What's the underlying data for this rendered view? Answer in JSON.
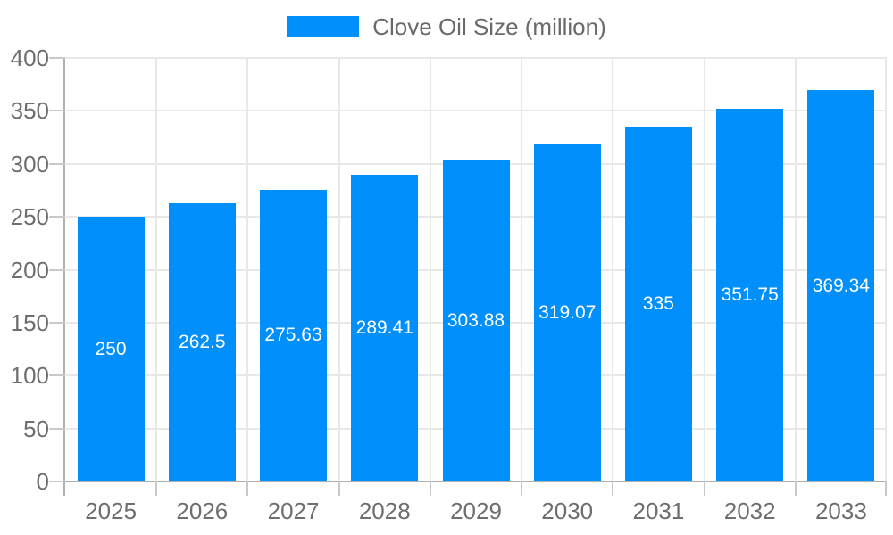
{
  "legend": {
    "label": "Clove Oil Size (million)"
  },
  "chart_data": {
    "type": "bar",
    "title": "Clove Oil Size (million)",
    "categories": [
      "2025",
      "2026",
      "2027",
      "2028",
      "2029",
      "2030",
      "2031",
      "2032",
      "2033"
    ],
    "values": [
      250,
      262.5,
      275.63,
      289.41,
      303.88,
      319.07,
      335,
      351.75,
      369.34
    ],
    "value_labels": [
      "250",
      "262.5",
      "275.63",
      "289.41",
      "303.88",
      "319.07",
      "335",
      "351.75",
      "369.34"
    ],
    "yticks": [
      0,
      50,
      100,
      150,
      200,
      250,
      300,
      350,
      400
    ],
    "ylim": [
      0,
      400
    ],
    "xlabel": "",
    "ylabel": "",
    "grid": true,
    "legend_position": "top",
    "data_labels": "inside-center",
    "colors": {
      "bar": "#008FFB",
      "gridline": "#e8e8e8",
      "axis": "#b0b0b0",
      "tick": "#c9c9c9",
      "axis_label_text": "#6e6e6e",
      "legend_text": "#6a6a6a",
      "data_label_text": "#ffffff",
      "background": "#ffffff"
    }
  }
}
